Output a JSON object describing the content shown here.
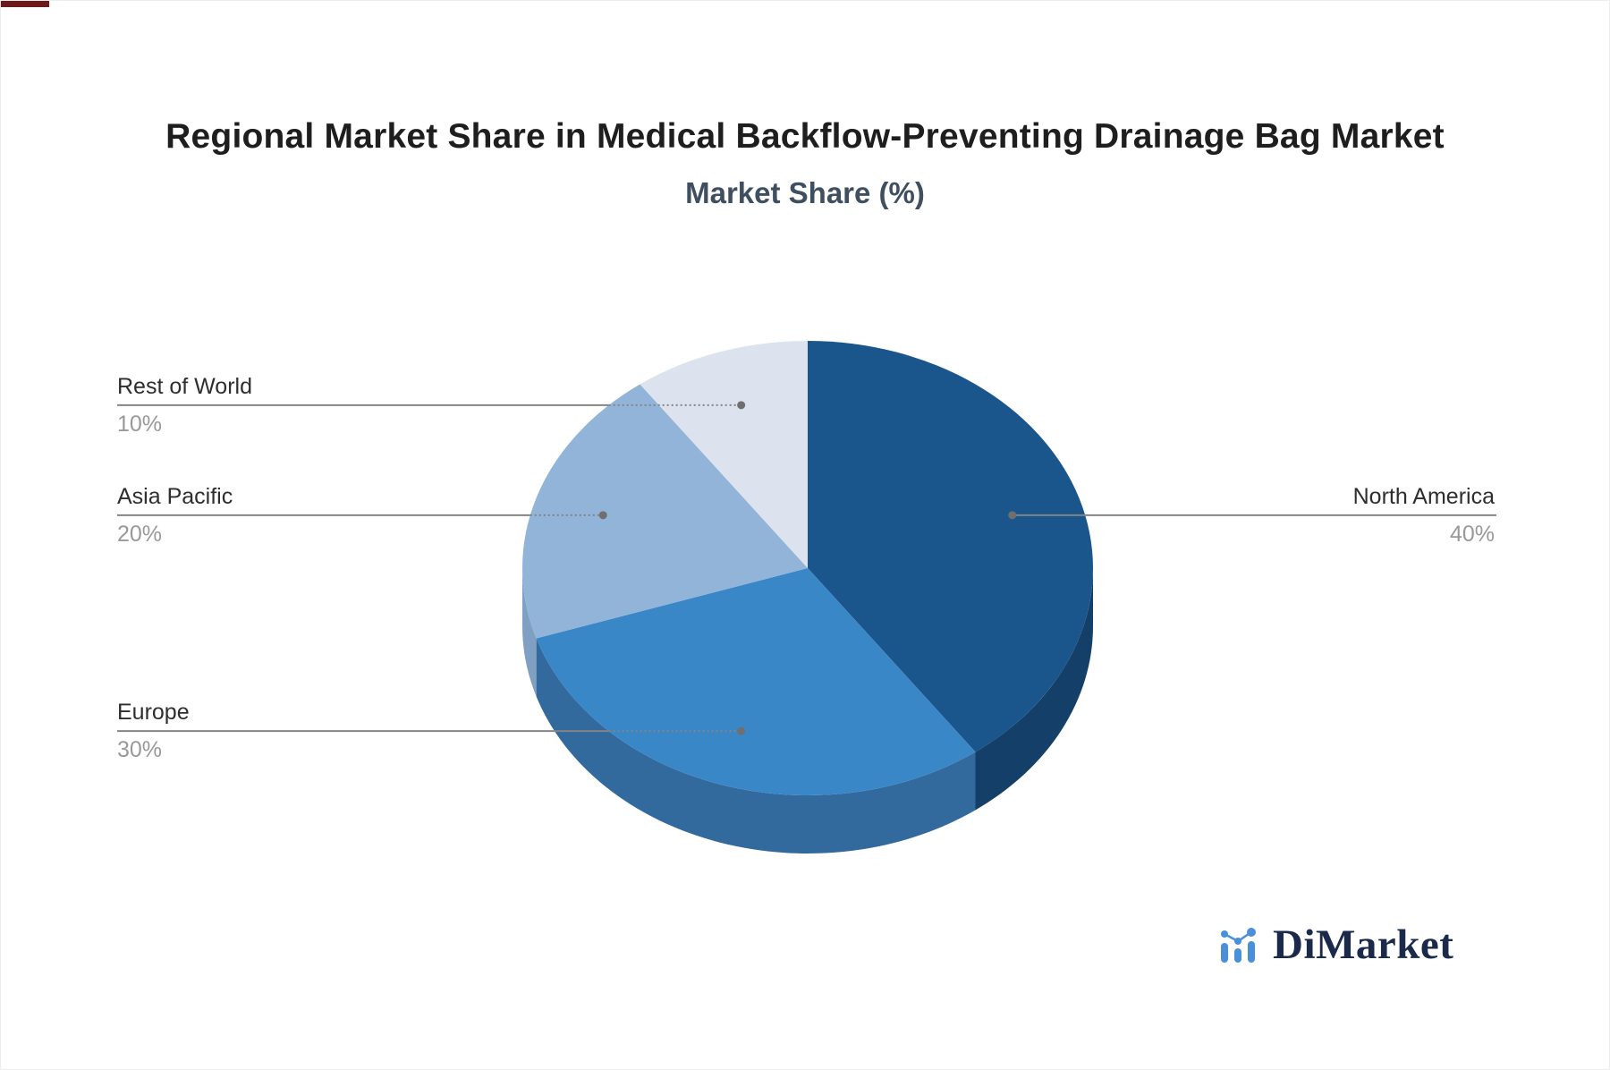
{
  "page": {
    "background": "#ffffff",
    "top_left_artifact_color": "#6e1a1a"
  },
  "chart_data": {
    "type": "pie",
    "style": "3d",
    "title": "Regional Market Share in Medical Backflow-Preventing Drainage Bag Market",
    "subtitle": "Market Share (%)",
    "title_color": "#1e1e1e",
    "subtitle_color": "#3f4f5f",
    "direction": "clockwise",
    "start_angle_deg": 0,
    "legend_position": "none",
    "grid": false,
    "slices": [
      {
        "label": "North America",
        "value": 40,
        "value_text": "40%",
        "color": "#1a568c",
        "side_color": "#143f68"
      },
      {
        "label": "Europe",
        "value": 30,
        "value_text": "30%",
        "color": "#3a87c8",
        "side_color": "#336a9e"
      },
      {
        "label": "Asia Pacific",
        "value": 20,
        "value_text": "20%",
        "color": "#92b4d9",
        "side_color": "#7f9fc3"
      },
      {
        "label": "Rest of World",
        "value": 10,
        "value_text": "10%",
        "color": "#dce3ee",
        "side_color": "#b9c6da"
      }
    ],
    "label_name_color": "#2e2e2e",
    "label_value_color": "#999999",
    "connector_color": "#848484",
    "connector_dot_color": "#6f6f6f"
  },
  "branding": {
    "logo_text": "DiMarket",
    "logo_text_color": "#1b2a4a",
    "logo_icon": "bar-chart-trend-icon",
    "logo_icon_color": "#4a90d8"
  }
}
